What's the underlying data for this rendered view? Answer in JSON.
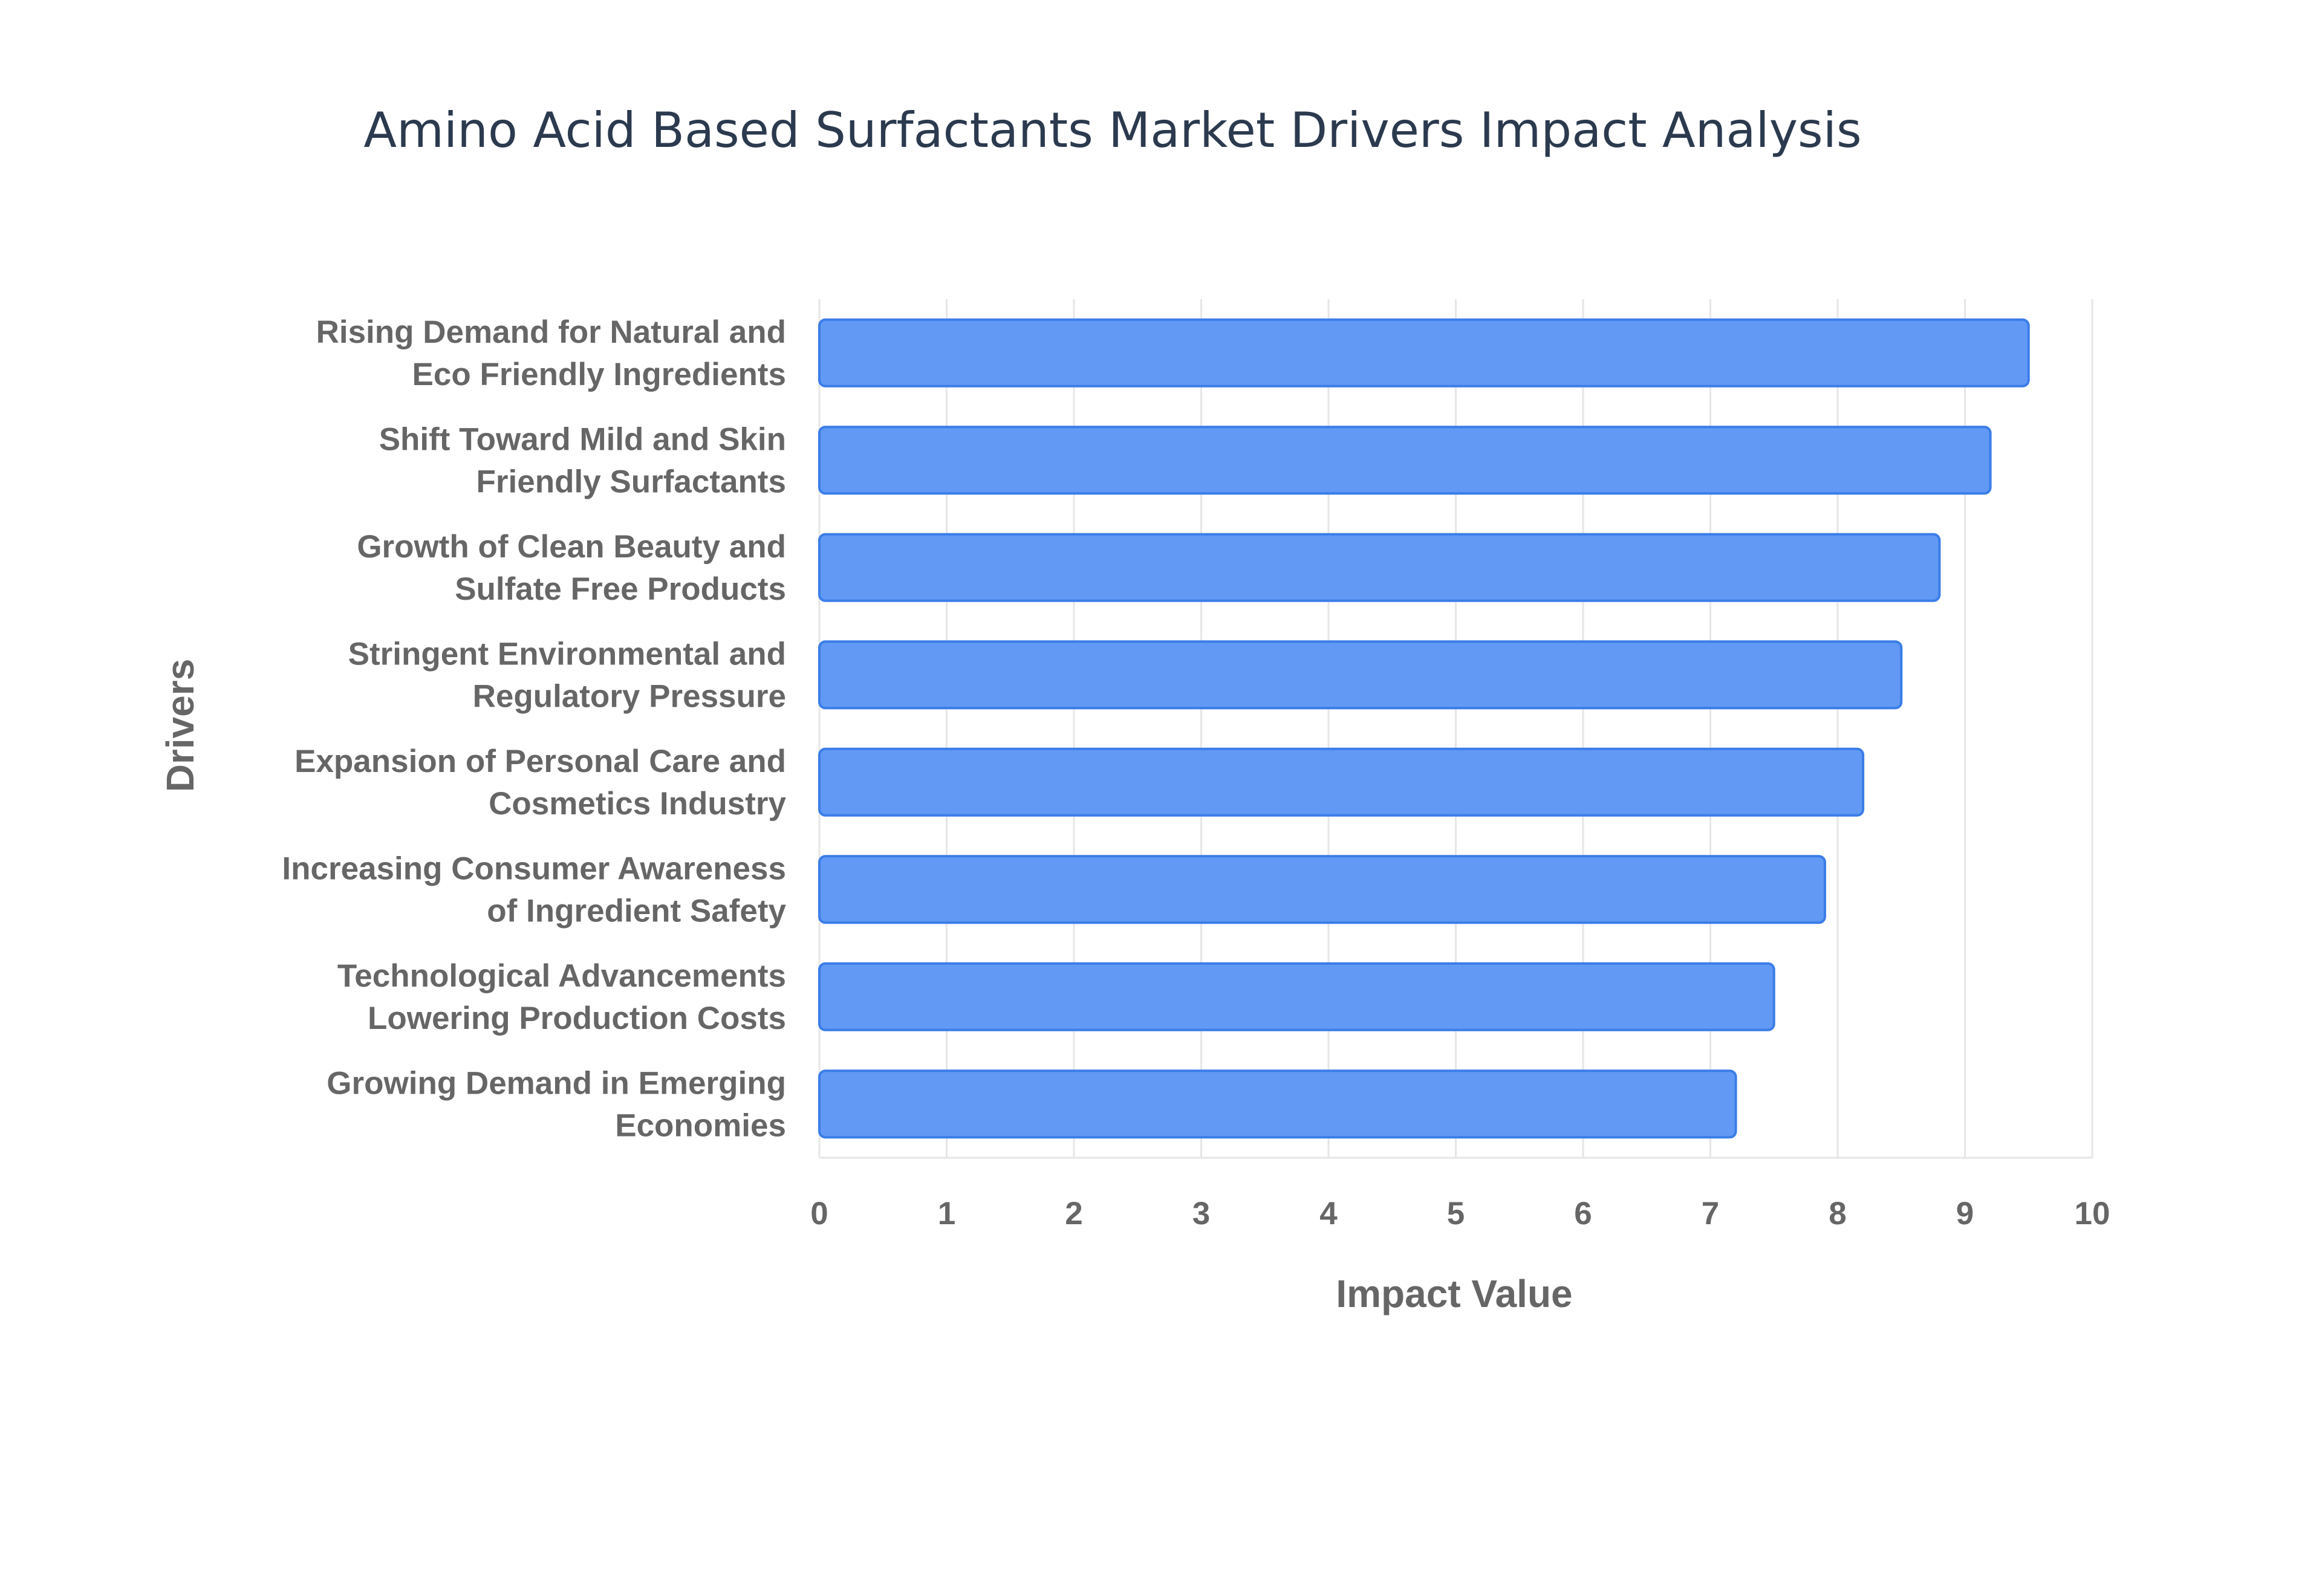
{
  "chart_data": {
    "type": "bar",
    "orientation": "horizontal",
    "title": "Amino Acid Based Surfactants Market Drivers Impact Analysis",
    "xlabel": "Impact Value",
    "ylabel": "Drivers",
    "xlim": [
      0,
      10
    ],
    "xticks": [
      0,
      1,
      2,
      3,
      4,
      5,
      6,
      7,
      8,
      9,
      10
    ],
    "grid": true,
    "legend": "none",
    "bar_color": "#6199f4",
    "bar_edge_color": "#3b7de8",
    "categories": [
      [
        "Rising Demand for Natural and",
        "Eco Friendly Ingredients"
      ],
      [
        "Shift Toward Mild and Skin",
        "Friendly Surfactants"
      ],
      [
        "Growth of Clean Beauty and",
        "Sulfate Free Products"
      ],
      [
        "Stringent Environmental and",
        "Regulatory Pressure"
      ],
      [
        "Expansion of Personal Care and",
        "Cosmetics Industry"
      ],
      [
        "Increasing Consumer Awareness",
        "of Ingredient Safety"
      ],
      [
        "Technological Advancements",
        "Lowering Production Costs"
      ],
      [
        "Growing Demand in Emerging",
        "Economies"
      ]
    ],
    "values": [
      9.5,
      9.2,
      8.8,
      8.5,
      8.2,
      7.9,
      7.5,
      7.2
    ]
  }
}
